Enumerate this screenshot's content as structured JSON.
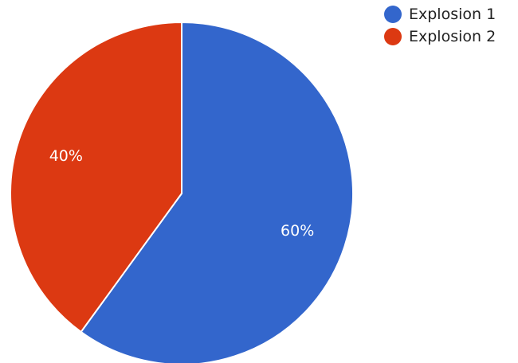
{
  "chart_data": {
    "type": "pie",
    "title": "",
    "legend_position": "top-right",
    "slices": [
      {
        "name": "Explosion 1",
        "value": 60,
        "label": "60%",
        "color": "#3366cc"
      },
      {
        "name": "Explosion 2",
        "value": 40,
        "label": "40%",
        "color": "#dc3912"
      }
    ]
  }
}
